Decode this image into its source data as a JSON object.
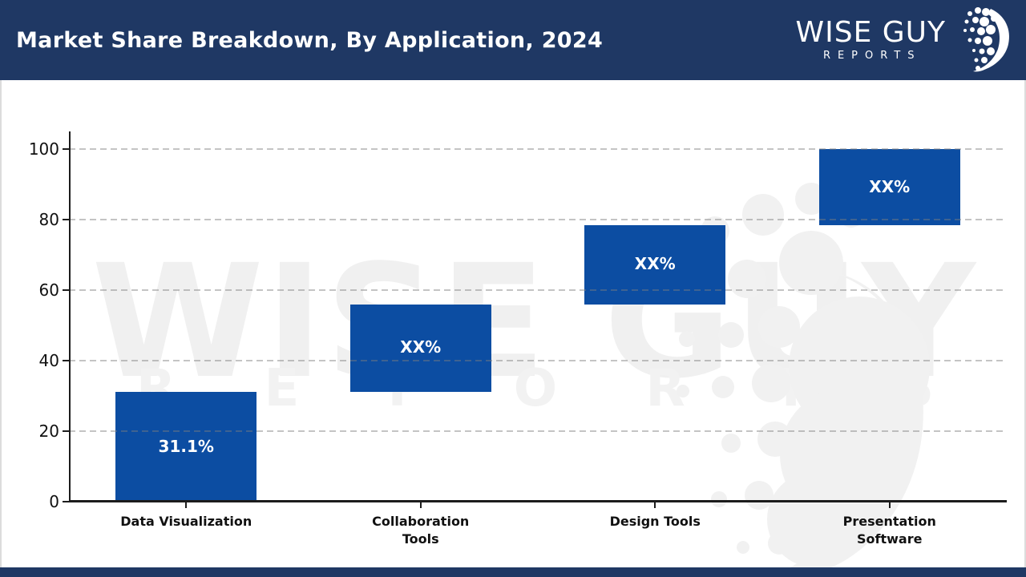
{
  "header": {
    "title": "Market Share Breakdown, By Application, 2024",
    "brand_line1": "WISE GUY",
    "brand_line2": "REPORTS"
  },
  "watermark": {
    "line1": "WISE GUY",
    "line2": "R E P O R T S"
  },
  "colors": {
    "header_bg": "#1f3864",
    "footer_bg": "#1f3864",
    "bar": "#0c4da2",
    "axis": "#1c1c1c",
    "grid": "#bdbdbd",
    "watermark": "#f0f0f0",
    "bar_label_text": "#ffffff",
    "title_text": "#ffffff"
  },
  "chart_data": {
    "type": "bar",
    "subtype": "waterfall-floating-bars",
    "title": "Market Share Breakdown, By Application, 2024",
    "categories": [
      "Data Visualization",
      "Collaboration\nTools",
      "Design Tools",
      "Presentation\nSoftware"
    ],
    "segments": [
      {
        "category": "Data Visualization",
        "start": 0,
        "end": 31.1,
        "label": "31.1%"
      },
      {
        "category": "Collaboration Tools",
        "start": 31.1,
        "end": 56.0,
        "label": "XX%"
      },
      {
        "category": "Design Tools",
        "start": 56.0,
        "end": 78.4,
        "label": "XX%"
      },
      {
        "category": "Presentation Software",
        "start": 78.4,
        "end": 100.0,
        "label": "XX%"
      }
    ],
    "xlabel": "",
    "ylabel": "",
    "yticks": [
      0,
      20,
      40,
      60,
      80,
      100
    ],
    "ylim": [
      0,
      105
    ],
    "grid": "horizontal dashed, drawn over bars",
    "legend": "none"
  }
}
